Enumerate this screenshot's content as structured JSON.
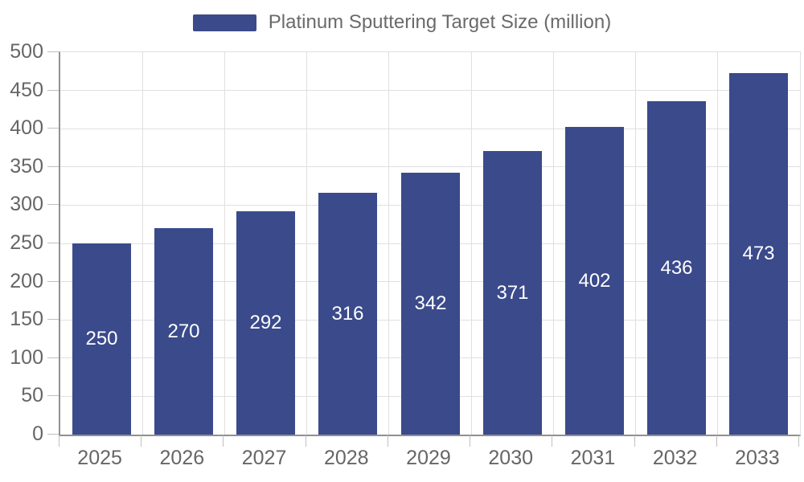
{
  "chart_data": {
    "type": "bar",
    "title": "Platinum Sputtering Target Size (million)",
    "categories": [
      "2025",
      "2026",
      "2027",
      "2028",
      "2029",
      "2030",
      "2031",
      "2032",
      "2033"
    ],
    "series": [
      {
        "name": "Platinum Sputtering Target Size (million)",
        "values": [
          250,
          270,
          292,
          316,
          342,
          371,
          402,
          436,
          473
        ]
      }
    ],
    "xlabel": "",
    "ylabel": "",
    "ylim": [
      0,
      500
    ],
    "y_ticks": [
      0,
      50,
      100,
      150,
      200,
      250,
      300,
      350,
      400,
      450,
      500
    ],
    "grid": true,
    "legend_position": "top",
    "value_labels_visible": true,
    "colors": {
      "bar": "#3a4a8b",
      "value_label_text": "#ffffff",
      "axis_line": "#909090",
      "gridline": "#e0e0e0",
      "tick_mark": "#bfbfbf",
      "tick_label_text": "#666666",
      "legend_text": "#6a6a6a",
      "background": "#ffffff"
    }
  }
}
